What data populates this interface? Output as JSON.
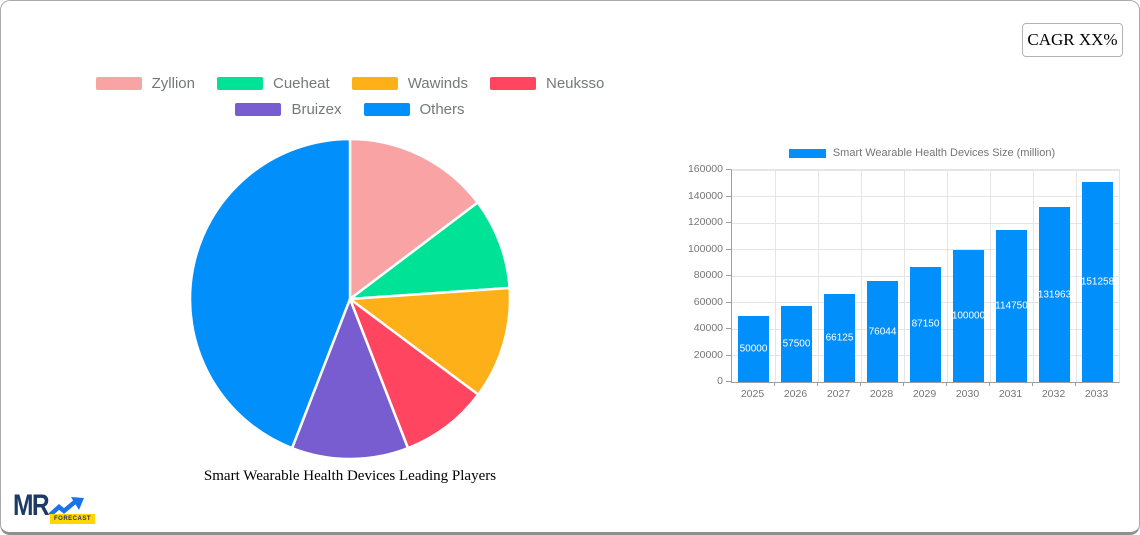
{
  "cagr_button": {
    "label": "CAGR XX%"
  },
  "chart_data": [
    {
      "type": "pie",
      "title": "Smart Wearable Health Devices Leading Players",
      "legend_position": "top",
      "labels": [
        "Zyllion",
        "Cueheat",
        "Wawinds",
        "Neuksso",
        "Bruizex",
        "Others"
      ],
      "values_percent": [
        14.7,
        9.2,
        11.3,
        8.9,
        11.8,
        44.1
      ],
      "colors": [
        "#F9A3A4",
        "#00E396",
        "#FEB019",
        "#FF4560",
        "#775DD0",
        "#008FFB"
      ],
      "start_angle_deg": 0,
      "slice_border_color": "#ffffff"
    },
    {
      "type": "bar",
      "legend": "Smart Wearable Health Devices Size (million)",
      "categories": [
        "2025",
        "2026",
        "2027",
        "2028",
        "2029",
        "2030",
        "2031",
        "2032",
        "2033"
      ],
      "values": [
        50000,
        57500,
        66125,
        76044,
        87150,
        100000,
        114750,
        131963,
        151258
      ],
      "bar_color": "#008FFB",
      "value_label_color": "#ffffff",
      "ylim": [
        0,
        160000
      ],
      "ytick_step": 20000,
      "yticks": [
        "0",
        "20000",
        "40000",
        "60000",
        "80000",
        "100000",
        "120000",
        "140000",
        "160000"
      ],
      "grid": true,
      "legend_position": "top"
    }
  ],
  "logo": {
    "text": "MR",
    "badge": "FORECAST"
  }
}
